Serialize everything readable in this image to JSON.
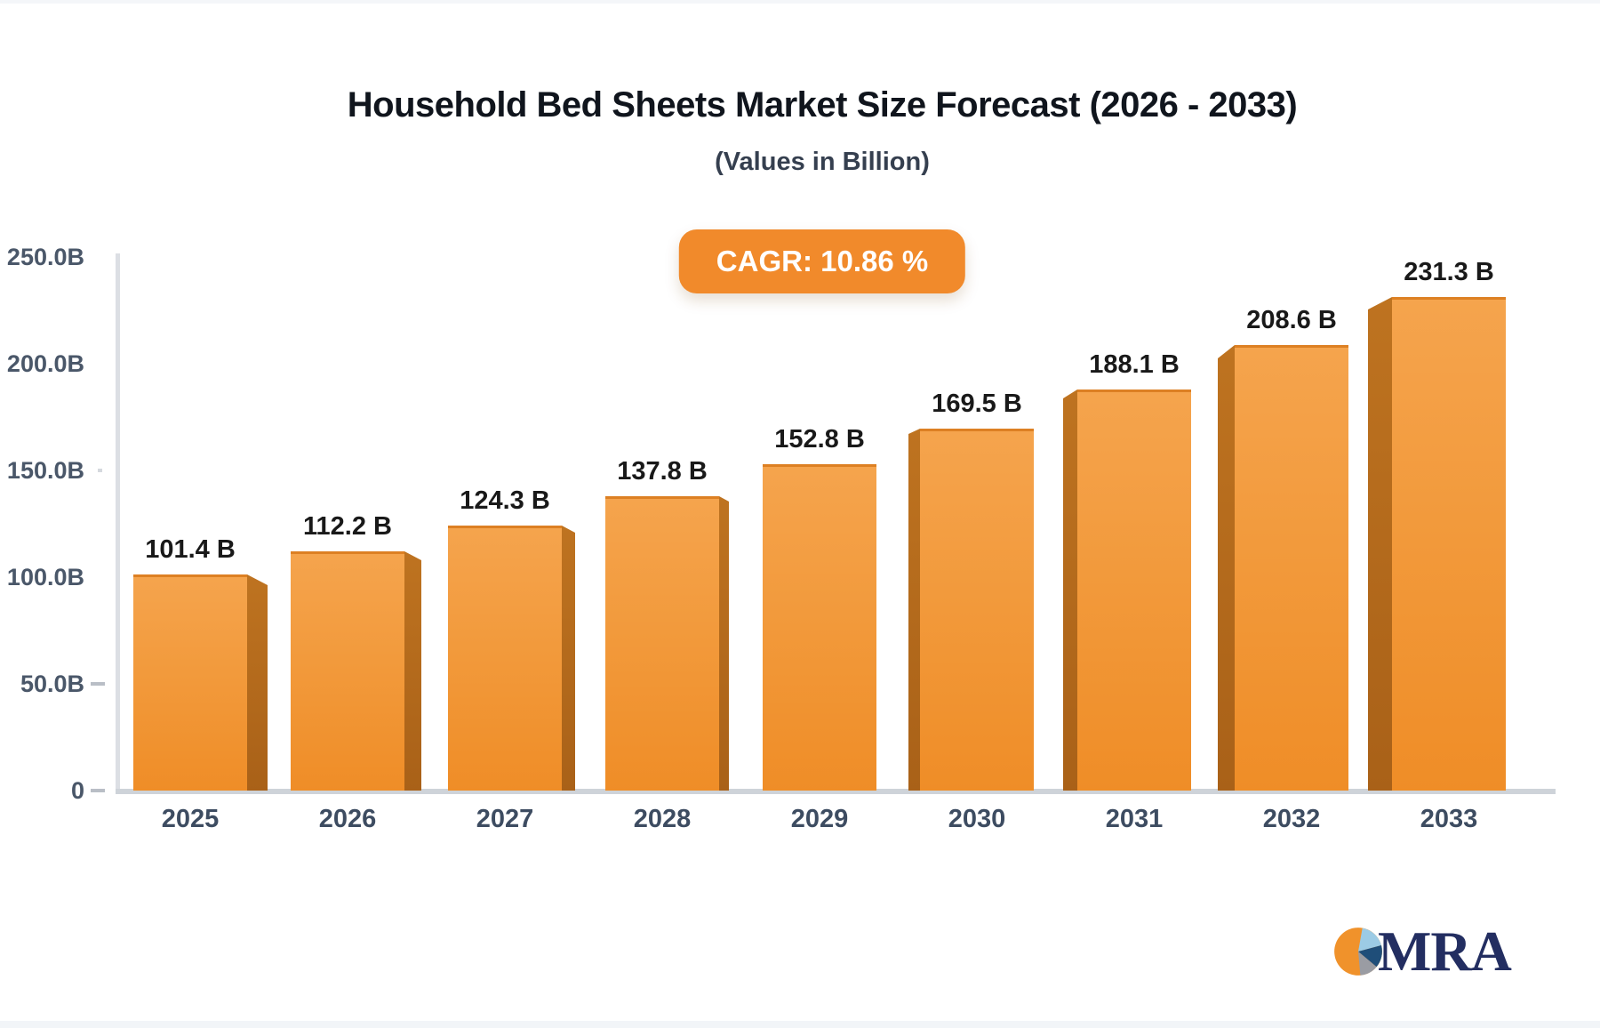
{
  "header": {
    "title": "Household Bed Sheets Market Size Forecast (2026 - 2033)",
    "subtitle": "(Values in Billion)",
    "cagr_badge": "CAGR: 10.86 %"
  },
  "chart_data": {
    "type": "bar",
    "title": "Household Bed Sheets Market Size Forecast (2026 - 2033)",
    "subtitle": "(Values in Billion)",
    "cagr": "10.86 %",
    "categories": [
      "2025",
      "2026",
      "2027",
      "2028",
      "2029",
      "2030",
      "2031",
      "2032",
      "2033"
    ],
    "values": [
      101.4,
      112.2,
      124.3,
      137.8,
      152.8,
      169.5,
      188.1,
      208.6,
      231.3
    ],
    "value_labels": [
      "101.4 B",
      "112.2 B",
      "124.3 B",
      "137.8 B",
      "152.8 B",
      "169.5 B",
      "188.1 B",
      "208.6 B",
      "231.3 B"
    ],
    "xlabel": "",
    "ylabel": "",
    "ylim": [
      0,
      250
    ],
    "grid": false,
    "legend_position": "none",
    "y_axis": {
      "ticks": [
        "0",
        "50.0B",
        "100.0B",
        "150.0B",
        "200.0B",
        "250.0B"
      ],
      "tick_values": [
        0,
        50,
        100,
        150,
        200,
        250
      ]
    },
    "colors": {
      "bar_face_top": "#F5A44D",
      "bar_face_bottom": "#EF8D27",
      "bar_side": "#B0691E",
      "badge_background": "#F18A2B",
      "badge_text": "#FFFFFF",
      "axis_line": "#DCDFE4",
      "baseline": "#CED3D9",
      "value_label_text": "#191919",
      "axis_tick_text": "#4A5769",
      "year_label_text": "#3D4C61"
    }
  },
  "branding": {
    "logo_text": "MRA",
    "logo_text_color": "#232E61",
    "pie_icon_colors": {
      "orange": "#F0922B",
      "light_blue": "#9CCBE5",
      "dark_blue": "#1F4E79",
      "gray": "#9A9CA3"
    }
  }
}
